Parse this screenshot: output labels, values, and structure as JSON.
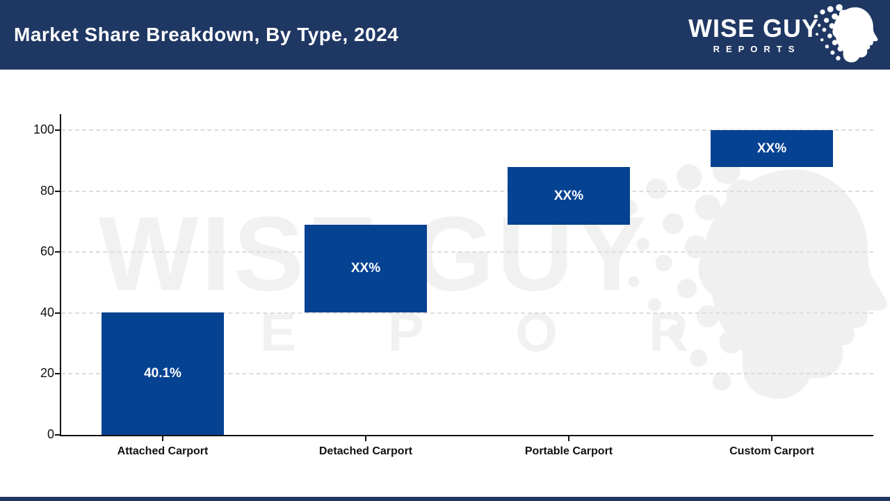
{
  "header": {
    "title": "Market Share Breakdown, By Type, 2024",
    "brand_line1": "WISE GUY",
    "brand_line2": "REPORTS",
    "bg_color": "#1f3763"
  },
  "watermark": {
    "line1": "WISE GUY",
    "line2": "REPORTS"
  },
  "chart_data": {
    "type": "bar",
    "subtype": "waterfall-style floating segment bars, cumulative market share",
    "title": "Market Share Breakdown, By Type, 2024",
    "categories": [
      "Attached Carport",
      "Detached Carport",
      "Portable Carport",
      "Custom Carport"
    ],
    "segments": [
      {
        "category": "Attached Carport",
        "start": 0,
        "end": 40.1,
        "label": "40.1%"
      },
      {
        "category": "Detached Carport",
        "start": 40.1,
        "end": 68.9,
        "label": "XX%"
      },
      {
        "category": "Portable Carport",
        "start": 68.9,
        "end": 87.8,
        "label": "XX%"
      },
      {
        "category": "Custom Carport",
        "start": 87.8,
        "end": 100,
        "label": "XX%"
      }
    ],
    "xlabel": "",
    "ylabel": "",
    "yticks": [
      "0",
      "20",
      "40",
      "60",
      "80",
      "100"
    ],
    "ytick_values": [
      0,
      20,
      40,
      60,
      80,
      100
    ],
    "ylim": [
      0,
      105
    ],
    "grid": "horizontal dashed, light gray",
    "legend": "none",
    "bar_color": "#064292",
    "value_label_color": "#ffffff",
    "axis_color": "#111111"
  }
}
